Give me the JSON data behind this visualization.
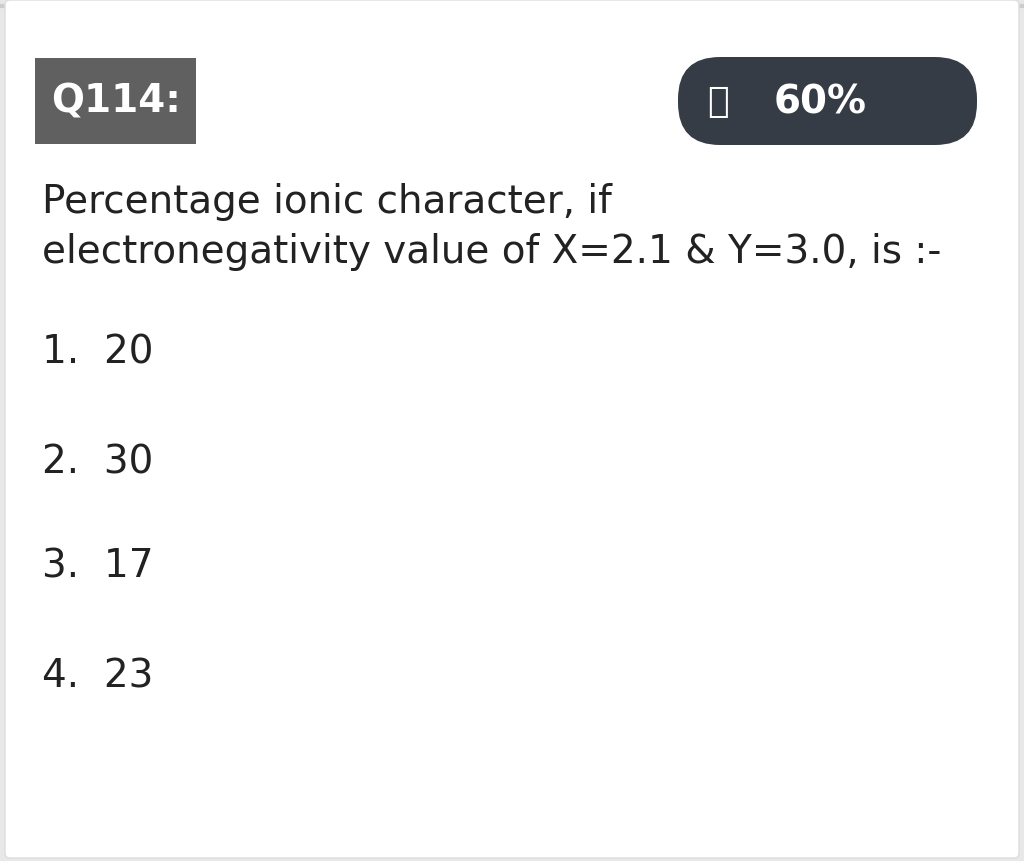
{
  "background_color": "#ffffff",
  "outer_bg_color": "#e8e8e8",
  "card_color": "#ffffff",
  "q_label": "Q114:",
  "q_label_bg": "#606060",
  "q_label_color": "#ffffff",
  "q_label_fontsize": 28,
  "like_badge_bg": "#363c45",
  "like_badge_color": "#ffffff",
  "like_badge_fontsize": 28,
  "like_pct": "60%",
  "question_line1": "Percentage ionic character, if",
  "question_line2": "electronegativity value of X=2.1 & Y=3.0, is :-",
  "question_fontsize": 28,
  "question_color": "#222222",
  "options": [
    "1.  20",
    "2.  30",
    "3.  17",
    "4.  23"
  ],
  "option_fontsize": 28,
  "option_color": "#222222",
  "top_border_color": "#cccccc"
}
